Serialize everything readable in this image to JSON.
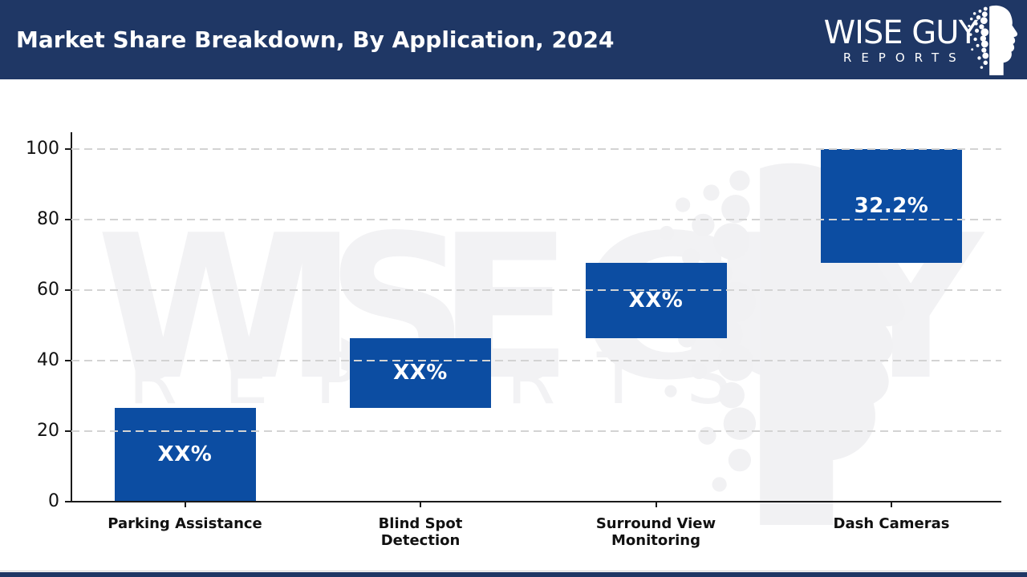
{
  "header": {
    "title": "Market Share Breakdown, By Application, 2024",
    "logo": {
      "wordmark": "WISE GUY",
      "subtext": "REPORTS"
    }
  },
  "watermark": {
    "wordmark": "WISE GUY",
    "subtext": "REPORTS"
  },
  "chart_data": {
    "type": "bar",
    "subtype": "floating-waterfall",
    "title": "Market Share Breakdown, By Application, 2024",
    "categories": [
      "Parking Assistance",
      "Blind Spot\nDetection",
      "Surround View\nMonitoring",
      "Dash Cameras"
    ],
    "segments": [
      {
        "category": "Parking Assistance",
        "start": 0,
        "end": 26.7,
        "label": "XX%"
      },
      {
        "category": "Blind Spot Detection",
        "start": 26.7,
        "end": 46.4,
        "label": "XX%"
      },
      {
        "category": "Surround View Monitoring",
        "start": 46.4,
        "end": 67.8,
        "label": "XX%"
      },
      {
        "category": "Dash Cameras",
        "start": 67.8,
        "end": 100,
        "label": "32.2%",
        "value": 32.2
      }
    ],
    "xlabel": "",
    "ylabel": "",
    "yticks": [
      0,
      20,
      40,
      60,
      80,
      100
    ],
    "ylim": [
      0,
      100
    ],
    "grid": "horizontal-dashed",
    "legend": "none",
    "colors": {
      "bar": "#0c4da2",
      "bar_label": "#ffffff",
      "grid": "#d3d3d3",
      "axis": "#1a1a1a",
      "header_bg": "#1f3765",
      "tick_label": "#111111",
      "watermark": "#f1f1f3"
    }
  }
}
